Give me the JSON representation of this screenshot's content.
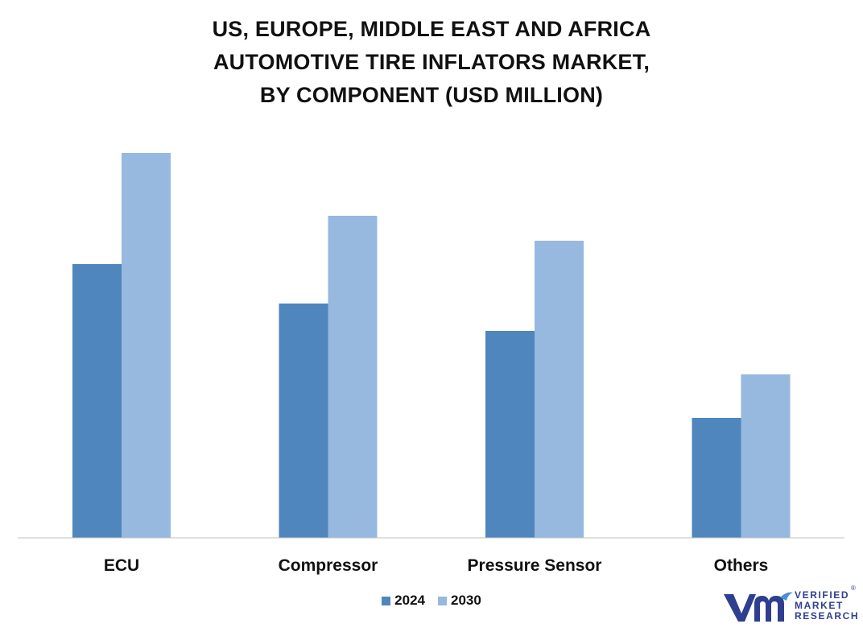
{
  "chart_data": {
    "type": "bar",
    "title_lines": [
      "US, EUROPE, MIDDLE EAST AND AFRICA",
      "AUTOMOTIVE TIRE INFLATORS MARKET,",
      "BY COMPONENT (USD MILLION)"
    ],
    "categories": [
      "ECU",
      "Compressor",
      "Pressure Sensor",
      "Others"
    ],
    "series": [
      {
        "name": "2024",
        "color": "#4f86bd",
        "values": [
          340,
          291,
          257,
          149
        ]
      },
      {
        "name": "2030",
        "color": "#97b8df",
        "values": [
          478,
          400,
          369,
          203
        ]
      }
    ],
    "ylim": [
      0,
      500
    ],
    "grid": false,
    "legend_position": "bottom-center"
  },
  "brand": {
    "logo_icon": "vmr-logo-icon",
    "words": [
      "VERIFIED",
      "MARKET",
      "RESEARCH"
    ],
    "color": "#2f3f8f",
    "accent": "#4a90d9"
  }
}
